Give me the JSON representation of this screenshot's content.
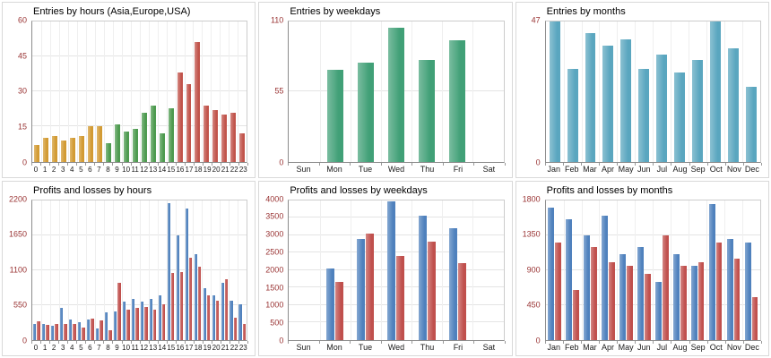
{
  "style": {
    "y_axis_label_color": "#993333",
    "x_axis_label_color": "#1a1a1a",
    "profit_color": "#4f81bd",
    "loss_color": "#c0504d",
    "asia_color": "#d29a32",
    "europe_color": "#4d9a4f",
    "usa_color": "#c1544b",
    "weekday_entries_color": "#41a077",
    "month_entries_color": "#5aa6bf"
  },
  "chart_data": [
    {
      "id": "entries-by-hours",
      "type": "bar",
      "title": "Entries by hours (Asia,Europe,USA)",
      "categories": [
        "0",
        "1",
        "2",
        "3",
        "4",
        "5",
        "6",
        "7",
        "8",
        "9",
        "10",
        "11",
        "12",
        "13",
        "14",
        "15",
        "16",
        "17",
        "18",
        "19",
        "20",
        "21",
        "22",
        "23"
      ],
      "values": [
        7,
        10,
        11,
        9,
        10,
        11,
        15,
        15,
        8,
        16,
        13,
        14,
        21,
        24,
        12,
        23,
        38,
        33,
        51,
        24,
        22,
        20,
        21,
        12
      ],
      "bar_colors": [
        "#d29a32",
        "#d29a32",
        "#d29a32",
        "#d29a32",
        "#d29a32",
        "#d29a32",
        "#d29a32",
        "#d29a32",
        "#4d9a4f",
        "#4d9a4f",
        "#4d9a4f",
        "#4d9a4f",
        "#4d9a4f",
        "#4d9a4f",
        "#4d9a4f",
        "#4d9a4f",
        "#c1544b",
        "#c1544b",
        "#c1544b",
        "#c1544b",
        "#c1544b",
        "#c1544b",
        "#c1544b",
        "#c1544b"
      ],
      "ylim": [
        0,
        60
      ],
      "yticks": [
        0,
        15,
        30,
        45,
        60
      ],
      "grid": true,
      "legend_position": "none"
    },
    {
      "id": "entries-by-weekdays",
      "type": "bar",
      "title": "Entries by weekdays",
      "categories": [
        "Sun",
        "Mon",
        "Tue",
        "Wed",
        "Thu",
        "Fri",
        "Sat"
      ],
      "values": [
        0,
        72,
        78,
        105,
        80,
        95,
        0
      ],
      "bar_color": "#41a077",
      "ylim": [
        0,
        110
      ],
      "yticks": [
        0,
        55,
        110
      ],
      "grid": true,
      "legend_position": "none"
    },
    {
      "id": "entries-by-months",
      "type": "bar",
      "title": "Entries by months",
      "categories": [
        "Jan",
        "Feb",
        "Mar",
        "Apr",
        "May",
        "Jun",
        "Jul",
        "Aug",
        "Sep",
        "Oct",
        "Nov",
        "Dec"
      ],
      "values": [
        47,
        31,
        43,
        39,
        41,
        31,
        36,
        30,
        34,
        47,
        38,
        25
      ],
      "bar_color": "#5aa6bf",
      "ylim": [
        0,
        47
      ],
      "yticks": [
        0,
        47
      ],
      "grid": true,
      "legend_position": "none"
    },
    {
      "id": "profits-losses-by-hours",
      "type": "bar",
      "title": "Profits and losses by hours",
      "categories": [
        "0",
        "1",
        "2",
        "3",
        "4",
        "5",
        "6",
        "7",
        "8",
        "9",
        "10",
        "11",
        "12",
        "13",
        "14",
        "15",
        "16",
        "17",
        "18",
        "19",
        "20",
        "21",
        "22",
        "23"
      ],
      "series": [
        {
          "name": "Profits",
          "color": "#4f81bd",
          "values": [
            260,
            260,
            230,
            500,
            320,
            280,
            330,
            180,
            430,
            450,
            600,
            650,
            600,
            650,
            700,
            2150,
            1650,
            2060,
            1350,
            820,
            700,
            900,
            620,
            560
          ]
        },
        {
          "name": "Losses",
          "color": "#c0504d",
          "values": [
            290,
            240,
            250,
            260,
            260,
            190,
            340,
            310,
            150,
            900,
            480,
            500,
            520,
            480,
            560,
            1050,
            1070,
            1300,
            1150,
            700,
            620,
            950,
            350,
            260
          ]
        }
      ],
      "ylim": [
        0,
        2200
      ],
      "yticks": [
        0,
        550,
        1100,
        1650,
        2200
      ],
      "grid": true,
      "legend_position": "none"
    },
    {
      "id": "profits-losses-by-weekdays",
      "type": "bar",
      "title": "Profits and losses by weekdays",
      "categories": [
        "Sun",
        "Mon",
        "Tue",
        "Wed",
        "Thu",
        "Fri",
        "Sat"
      ],
      "series": [
        {
          "name": "Profits",
          "color": "#4f81bd",
          "values": [
            0,
            2050,
            2900,
            3950,
            3550,
            3200,
            0
          ]
        },
        {
          "name": "Losses",
          "color": "#c0504d",
          "values": [
            0,
            1650,
            3050,
            2400,
            2800,
            2200,
            0
          ]
        }
      ],
      "ylim": [
        0,
        4000
      ],
      "yticks": [
        0,
        500,
        1000,
        1500,
        2000,
        2500,
        3000,
        3500,
        4000
      ],
      "grid": true,
      "legend_position": "none"
    },
    {
      "id": "profits-losses-by-months",
      "type": "bar",
      "title": "Profits and losses by months",
      "categories": [
        "Jan",
        "Feb",
        "Mar",
        "Apr",
        "May",
        "Jun",
        "Jul",
        "Aug",
        "Sep",
        "Oct",
        "Nov",
        "Dec"
      ],
      "series": [
        {
          "name": "Profits",
          "color": "#4f81bd",
          "values": [
            1700,
            1550,
            1350,
            1600,
            1100,
            1200,
            750,
            1100,
            950,
            1750,
            1300,
            1250
          ]
        },
        {
          "name": "Losses",
          "color": "#c0504d",
          "values": [
            1250,
            650,
            1200,
            1000,
            950,
            850,
            1350,
            950,
            1000,
            1250,
            1050,
            550
          ]
        }
      ],
      "ylim": [
        0,
        1800
      ],
      "yticks": [
        0,
        450,
        900,
        1350,
        1800
      ],
      "grid": true,
      "legend_position": "none"
    }
  ]
}
